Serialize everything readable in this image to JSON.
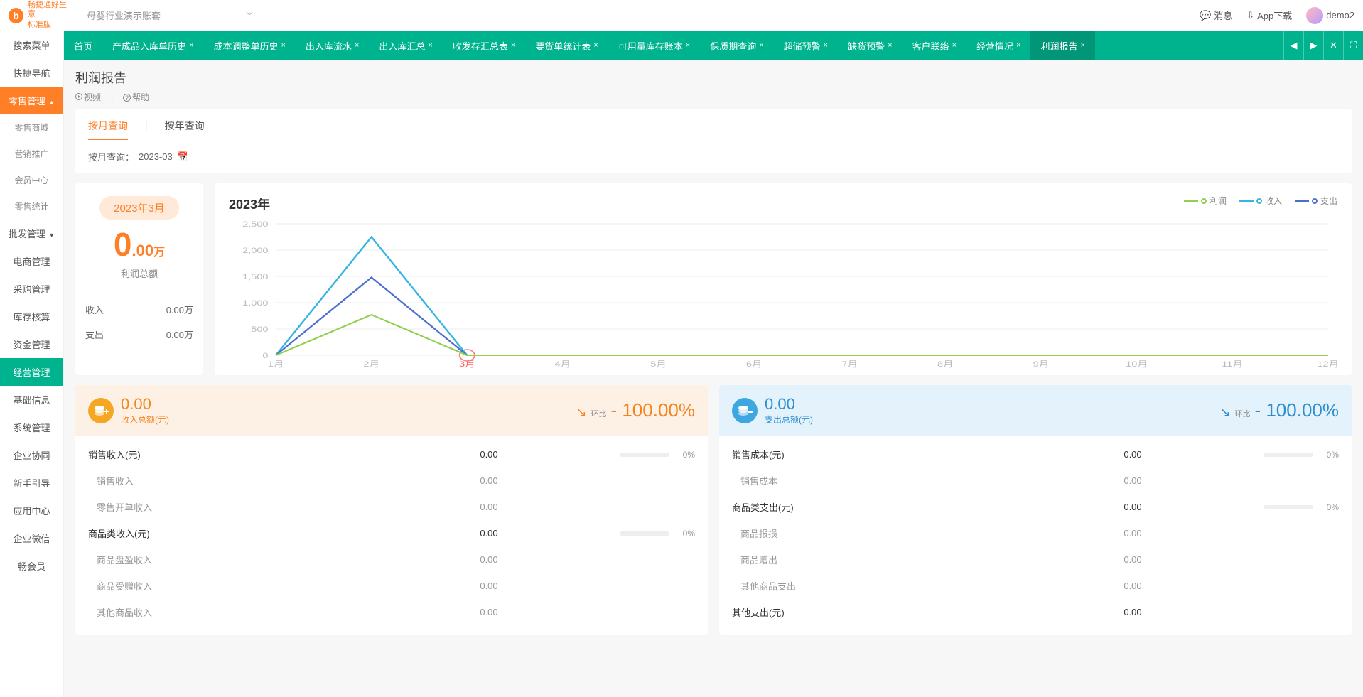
{
  "header": {
    "logo_text": "畅捷通好生意",
    "logo_sub": "标准版",
    "account_select": "母婴行业演示账套",
    "msg": "消息",
    "app_dl": "App下载",
    "user": "demo2"
  },
  "sidebar": {
    "items": [
      {
        "label": "搜索菜单",
        "type": "plain"
      },
      {
        "label": "快捷导航",
        "type": "plain"
      },
      {
        "label": "零售管理",
        "type": "active",
        "caret": "▲"
      },
      {
        "label": "零售商城",
        "type": "sub"
      },
      {
        "label": "营销推广",
        "type": "sub"
      },
      {
        "label": "会员中心",
        "type": "sub"
      },
      {
        "label": "零售统计",
        "type": "sub"
      },
      {
        "label": "批发管理",
        "type": "plain",
        "caret": "▼"
      },
      {
        "label": "电商管理",
        "type": "plain"
      },
      {
        "label": "采购管理",
        "type": "plain"
      },
      {
        "label": "库存核算",
        "type": "plain"
      },
      {
        "label": "资金管理",
        "type": "plain"
      },
      {
        "label": "经营管理",
        "type": "highlight"
      },
      {
        "label": "基础信息",
        "type": "plain"
      },
      {
        "label": "系统管理",
        "type": "plain"
      },
      {
        "label": "企业协同",
        "type": "plain"
      },
      {
        "label": "新手引导",
        "type": "plain"
      },
      {
        "label": "应用中心",
        "type": "plain"
      },
      {
        "label": "企业微信",
        "type": "plain"
      },
      {
        "label": "畅会员",
        "type": "plain"
      }
    ]
  },
  "tabs": [
    {
      "label": "首页",
      "closable": false
    },
    {
      "label": "产成品入库单历史",
      "closable": true
    },
    {
      "label": "成本调整单历史",
      "closable": true
    },
    {
      "label": "出入库流水",
      "closable": true
    },
    {
      "label": "出入库汇总",
      "closable": true
    },
    {
      "label": "收发存汇总表",
      "closable": true
    },
    {
      "label": "要货单统计表",
      "closable": true
    },
    {
      "label": "可用量库存账本",
      "closable": true
    },
    {
      "label": "保质期查询",
      "closable": true
    },
    {
      "label": "超储预警",
      "closable": true
    },
    {
      "label": "缺货预警",
      "closable": true
    },
    {
      "label": "客户联络",
      "closable": true
    },
    {
      "label": "经营情况",
      "closable": true
    },
    {
      "label": "利润报告",
      "closable": true,
      "active": true
    }
  ],
  "page": {
    "title": "利润报告",
    "link_video": "视频",
    "link_help": "帮助",
    "subtabs": [
      {
        "label": "按月查询",
        "active": true
      },
      {
        "label": "按年查询",
        "active": false
      }
    ],
    "query_label": "按月查询：",
    "query_value": "2023-03"
  },
  "kpi": {
    "period": "2023年3月",
    "big_int": "0",
    "big_dec": ".00",
    "big_unit": "万",
    "sub": "利润总额",
    "rows": [
      {
        "k": "收入",
        "v": "0.00万"
      },
      {
        "k": "支出",
        "v": "0.00万"
      }
    ]
  },
  "chart": {
    "title": "2023年",
    "legend": [
      {
        "label": "利润",
        "color": "#8fd14f"
      },
      {
        "label": "收入",
        "color": "#36b5e0"
      },
      {
        "label": "支出",
        "color": "#4a6fcf"
      }
    ],
    "y_ticks": [
      "2,500",
      "2,000",
      "1,500",
      "1,000",
      "500",
      "0"
    ],
    "ylim": [
      0,
      2500
    ],
    "x_labels": [
      "1月",
      "2月",
      "3月",
      "4月",
      "5月",
      "6月",
      "7月",
      "8月",
      "9月",
      "10月",
      "11月",
      "12月"
    ],
    "current_x_index": 2,
    "series": {
      "income": [
        0,
        2250,
        0,
        0,
        0,
        0,
        0,
        0,
        0,
        0,
        0,
        0
      ],
      "expense": [
        0,
        1480,
        0,
        0,
        0,
        0,
        0,
        0,
        0,
        0,
        0,
        0
      ],
      "profit": [
        0,
        770,
        0,
        0,
        0,
        0,
        0,
        0,
        0,
        0,
        0,
        0
      ]
    },
    "grid_color": "#eeeeee",
    "axis_text_color": "#bbbbbb",
    "background": "#ffffff"
  },
  "income_panel": {
    "value": "0.00",
    "label": "收入总额(元)",
    "hb": "环比",
    "pct": "- 100.00%",
    "accent": "#f5841f",
    "rows": [
      {
        "name": "销售收入(元)",
        "val": "0.00",
        "pct": "0%",
        "head": true
      },
      {
        "name": "销售收入",
        "val": "0.00",
        "head": false
      },
      {
        "name": "零售开单收入",
        "val": "0.00",
        "head": false
      },
      {
        "name": "商品类收入(元)",
        "val": "0.00",
        "pct": "0%",
        "head": true
      },
      {
        "name": "商品盘盈收入",
        "val": "0.00",
        "head": false
      },
      {
        "name": "商品受赠收入",
        "val": "0.00",
        "head": false
      },
      {
        "name": "其他商品收入",
        "val": "0.00",
        "head": false
      }
    ]
  },
  "expense_panel": {
    "value": "0.00",
    "label": "支出总额(元)",
    "hb": "环比",
    "pct": "- 100.00%",
    "accent": "#2e8fd0",
    "rows": [
      {
        "name": "销售成本(元)",
        "val": "0.00",
        "pct": "0%",
        "head": true
      },
      {
        "name": "销售成本",
        "val": "0.00",
        "head": false
      },
      {
        "name": "商品类支出(元)",
        "val": "0.00",
        "pct": "0%",
        "head": true
      },
      {
        "name": "商品报损",
        "val": "0.00",
        "head": false
      },
      {
        "name": "商品赠出",
        "val": "0.00",
        "head": false
      },
      {
        "name": "其他商品支出",
        "val": "0.00",
        "head": false
      },
      {
        "name": "其他支出(元)",
        "val": "0.00",
        "head": true
      }
    ]
  }
}
